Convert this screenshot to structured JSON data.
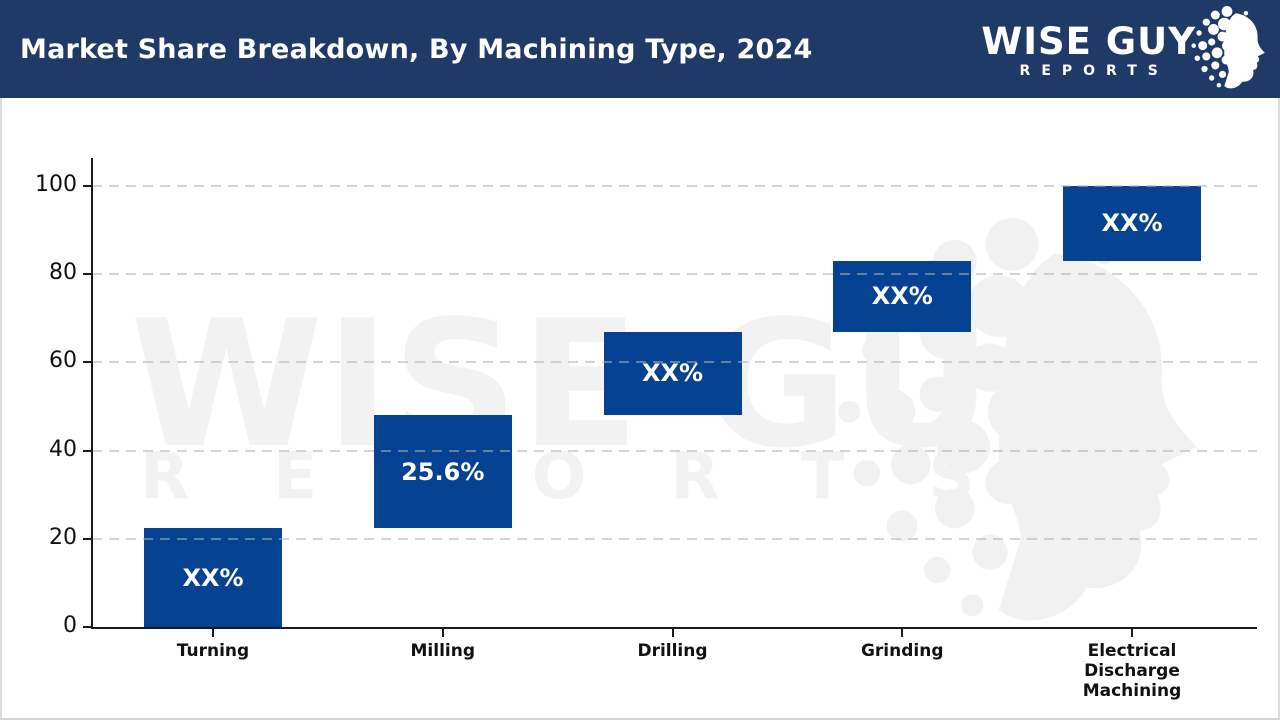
{
  "header": {
    "title": "Market Share Breakdown, By Machining Type, 2024",
    "logo": {
      "line1": "WISE GUY",
      "line2": "REPORTS"
    }
  },
  "watermark": {
    "line1": "WISE GUY",
    "line2": "REPORTS"
  },
  "chart_data": {
    "type": "bar",
    "variant": "floating-waterfall",
    "title": "Market Share Breakdown, By Machining Type, 2024",
    "xlabel": "",
    "ylabel": "",
    "ylim": [
      0,
      105
    ],
    "yticks": [
      0,
      20,
      40,
      60,
      80,
      100
    ],
    "grid": "horizontal-dashed",
    "legend": "none",
    "categories": [
      "Turning",
      "Milling",
      "Drilling",
      "Grinding",
      "Electrical Discharge Machining"
    ],
    "bars": [
      {
        "category": "Turning",
        "start": 0,
        "end": 22.4,
        "label": "XX%"
      },
      {
        "category": "Milling",
        "start": 22.4,
        "end": 48,
        "label": "25.6%"
      },
      {
        "category": "Drilling",
        "start": 48,
        "end": 67,
        "label": "XX%"
      },
      {
        "category": "Grinding",
        "start": 67,
        "end": 83,
        "label": "XX%"
      },
      {
        "category": "Electrical Discharge Machining",
        "start": 83,
        "end": 100,
        "label": "XX%"
      }
    ],
    "bar_color": "#064292",
    "bar_label_color": "#ffffff"
  },
  "colors": {
    "header_bg": "#203a68",
    "header_text": "#ffffff",
    "grid": "#d9d9d9",
    "axis": "#1a1a1a",
    "watermark": "#f2f2f2"
  }
}
